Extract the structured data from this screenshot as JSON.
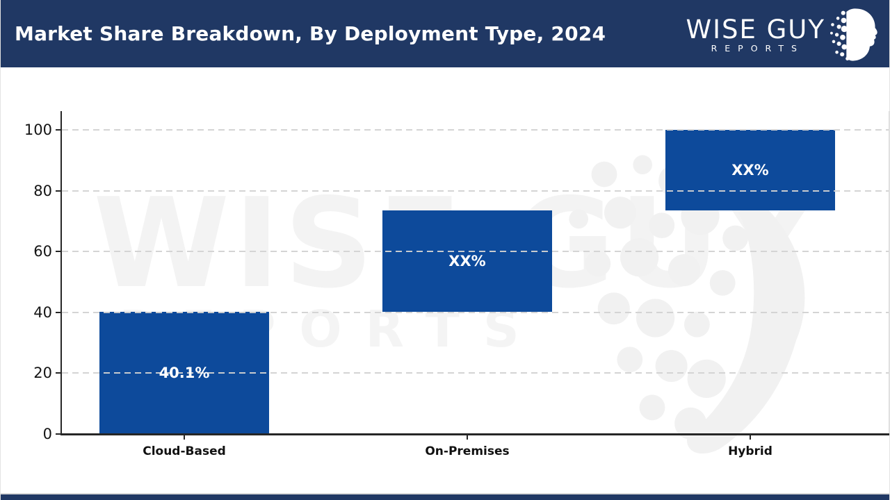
{
  "header": {
    "title": "Market Share Breakdown, By Deployment Type, 2024",
    "bg_color": "#203864"
  },
  "logo": {
    "line1": "WISE GUY",
    "line2": "REPORTS",
    "face_icon": "dotted-head-profile"
  },
  "watermark": {
    "line1": "WISE GUY",
    "line2": "REPORTS",
    "face_icon": "dotted-head-profile"
  },
  "chart_data": {
    "type": "bar",
    "subtype": "waterfall",
    "title": "Market Share Breakdown, By Deployment Type, 2024",
    "categories": [
      "Cloud-Based",
      "On-Premises",
      "Hybrid"
    ],
    "segments": [
      {
        "category": "Cloud-Based",
        "start": 0,
        "end": 40.1,
        "label": "40.1%"
      },
      {
        "category": "On-Premises",
        "start": 40.1,
        "end": 73.5,
        "label": "XX%"
      },
      {
        "category": "Hybrid",
        "start": 73.5,
        "end": 100,
        "label": "XX%"
      }
    ],
    "xlabel": "",
    "ylabel": "",
    "ylim": [
      0,
      106
    ],
    "yticks": [
      0,
      20,
      40,
      60,
      80,
      100
    ],
    "grid": {
      "horizontal": true,
      "style": "dashed",
      "color": "#d0d0d0",
      "above_bars": true
    },
    "legend": null,
    "bar_color": "#0d4a9b",
    "bar_label_color": "#ffffff",
    "axis_color": "#262626",
    "tick_label_color": "#141414"
  }
}
